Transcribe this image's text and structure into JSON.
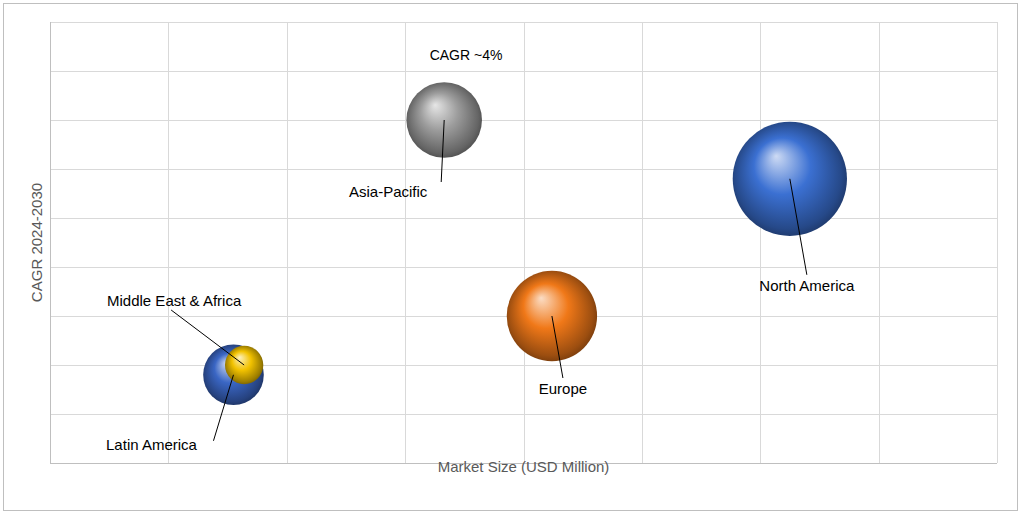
{
  "chart_data": {
    "type": "bubble",
    "annotation": "CAGR ~4%",
    "x_label": "Market Size (USD Million)",
    "y_label": "CAGR 2024-2030",
    "categories": [
      "Asia-Pacific",
      "North America",
      "Europe",
      "Latin America",
      "Middle East & Africa"
    ],
    "x": [
      333,
      625,
      424,
      155,
      164
    ],
    "values": [
      4.0,
      3.4,
      2.0,
      1.4,
      1.5
    ],
    "sizes": [
      14,
      32,
      20,
      9,
      3.6
    ],
    "colors": [
      "#9c9c9c",
      "#3b70d2",
      "#f07818",
      "#3a66c4",
      "#f2c200"
    ],
    "xlim": [
      0,
      800
    ],
    "xticks": [
      0,
      100,
      200,
      300,
      400,
      500,
      600,
      700,
      800
    ],
    "ylim": [
      0.5,
      5
    ],
    "yticks": [
      0.5,
      1,
      1.5,
      2,
      2.5,
      3,
      3.5,
      4,
      4.5,
      5
    ],
    "grid": true,
    "tick_labels": false
  }
}
